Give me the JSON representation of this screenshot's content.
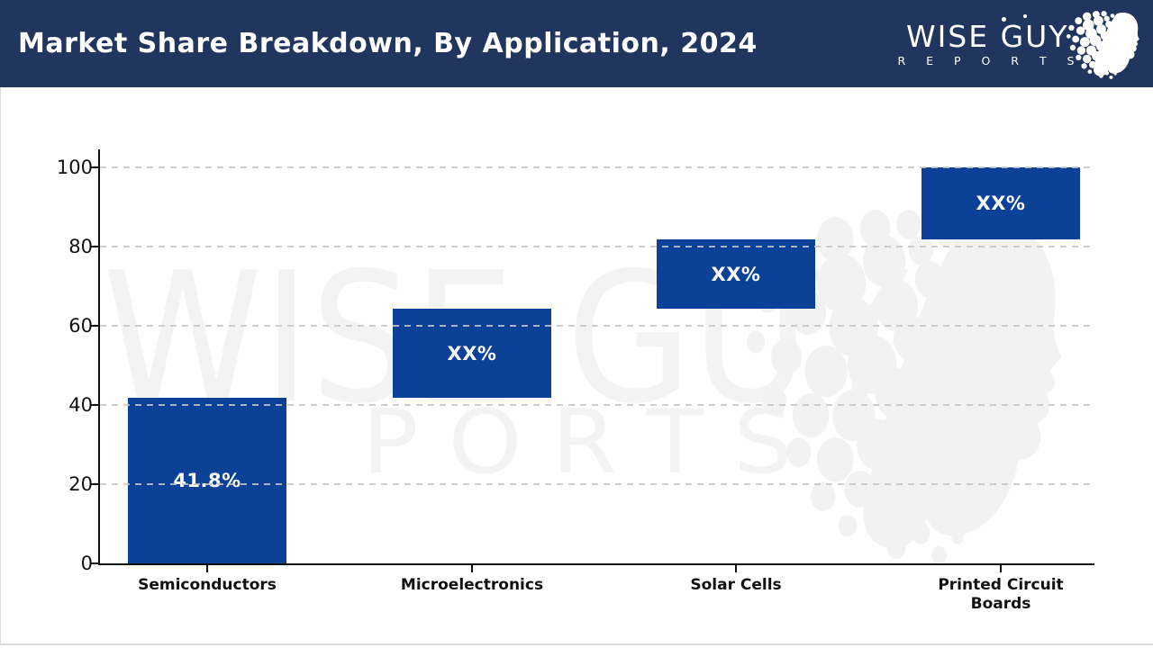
{
  "header": {
    "title": "Market Share Breakdown, By Application, 2024",
    "bg_color": "#21365f",
    "logo": {
      "brand": "WISE GUY",
      "sub": "R E P O R T S"
    }
  },
  "watermark": {
    "line1": "WISE GUY",
    "line2": "P O R T S",
    "color": "#f2f2f2",
    "text_color": "#f3f3f3"
  },
  "chart_data": {
    "type": "bar",
    "subtype": "waterfall",
    "title": "Market Share Breakdown, By Application, 2024",
    "categories": [
      "Semiconductors",
      "Microelectronics",
      "Solar Cells",
      "Printed Circuit Boards"
    ],
    "segments": [
      {
        "category": "Semiconductors",
        "start": 0,
        "end": 41.8,
        "label": "41.8%"
      },
      {
        "category": "Microelectronics",
        "start": 41.8,
        "end": 64.3,
        "label": "XX%"
      },
      {
        "category": "Solar Cells",
        "start": 64.3,
        "end": 81.8,
        "label": "XX%"
      },
      {
        "category": "Printed Circuit Boards",
        "start": 81.8,
        "end": 100,
        "label": "XX%"
      }
    ],
    "y_ticks": [
      0,
      20,
      40,
      60,
      80,
      100
    ],
    "ylim": [
      0,
      105
    ],
    "xlabel": "",
    "ylabel": "",
    "grid": "dashed horizontal gridlines, drawn over bars",
    "legend": "none",
    "bar_color": "#0b4197",
    "bar_label_color": "#ffffff"
  }
}
